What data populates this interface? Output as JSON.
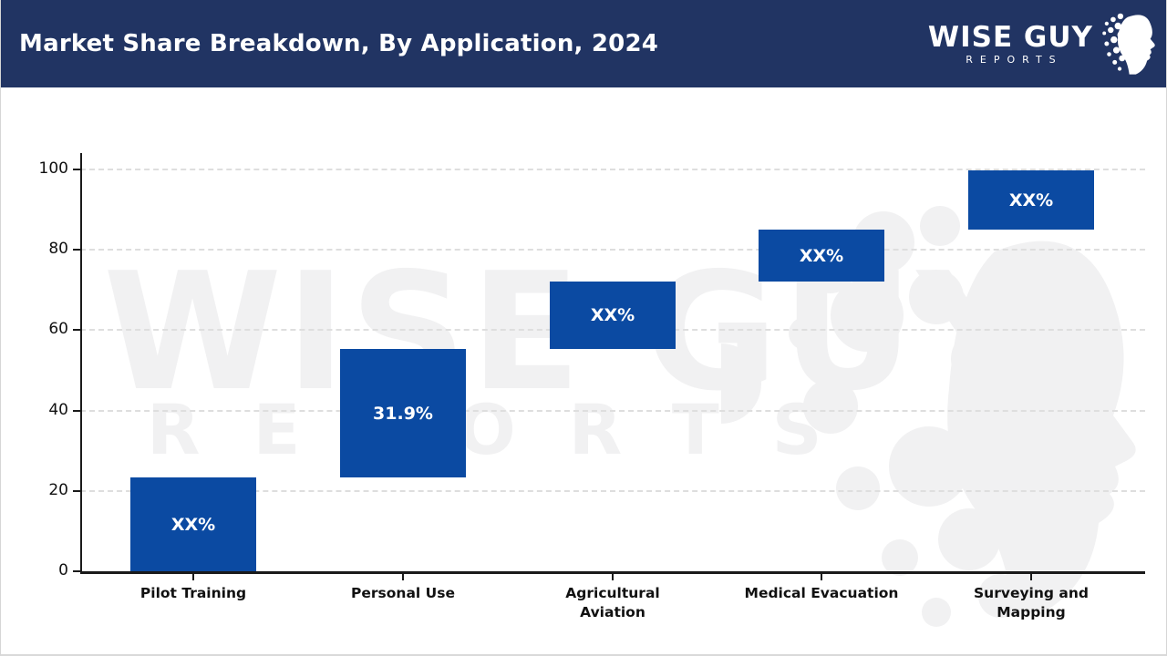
{
  "header": {
    "title": "Market Share Breakdown, By Application, 2024",
    "logo": {
      "main": "WISE GUY",
      "sub": "REPORTS"
    }
  },
  "watermark": {
    "line1": "WISE GUY",
    "line2": "REPORTS"
  },
  "colors": {
    "header_bg": "#213463",
    "bar": "#0b4aa2",
    "grid": "#dedede",
    "axis": "#1a1a1a",
    "watermark": "#f1f1f2"
  },
  "chart_data": {
    "type": "bar",
    "subtype": "waterfall",
    "title": "Market Share Breakdown, By Application, 2024",
    "categories": [
      "Pilot Training",
      "Personal Use",
      "Agricultural Aviation",
      "Medical Evacuation",
      "Surveying and Mapping"
    ],
    "x_tick_labels": [
      "Pilot Training",
      "Personal Use",
      "Agricultural\nAviation",
      "Medical Evacuation",
      "Surveying and\nMapping"
    ],
    "segments": [
      {
        "category": "Pilot Training",
        "start": 0,
        "end": 23.4,
        "label": "XX%"
      },
      {
        "category": "Personal Use",
        "start": 23.4,
        "end": 55.3,
        "label": "31.9%"
      },
      {
        "category": "Agricultural Aviation",
        "start": 55.3,
        "end": 72.1,
        "label": "XX%"
      },
      {
        "category": "Medical Evacuation",
        "start": 72.1,
        "end": 85.0,
        "label": "XX%"
      },
      {
        "category": "Surveying and Mapping",
        "start": 85.0,
        "end": 99.8,
        "label": "XX%"
      }
    ],
    "ylabel": "",
    "xlabel": "",
    "y_ticks": [
      0,
      20,
      40,
      60,
      80,
      100
    ],
    "ylim": [
      0,
      105
    ],
    "grid": "horizontal-dashed",
    "legend": "none",
    "bar_color": "#0b4aa2"
  }
}
